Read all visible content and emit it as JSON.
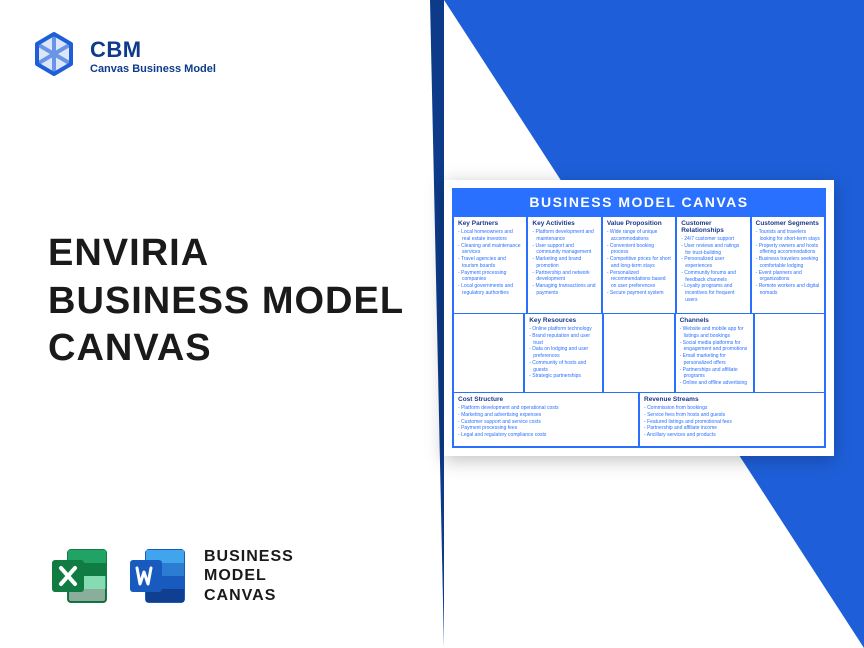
{
  "brand": {
    "name": "CBM",
    "tagline": "Canvas Business Model"
  },
  "title": {
    "line1": "ENVIRIA",
    "line2": "BUSINESS MODEL",
    "line3": "CANVAS"
  },
  "bottom": {
    "line1": "BUSINESS",
    "line2": "MODEL",
    "line3": "CANVAS"
  },
  "canvas": {
    "header": "BUSINESS MODEL CANVAS",
    "keyPartners": {
      "title": "Key Partners",
      "items": [
        "Local homeowners and real estate investors",
        "Cleaning and maintenance services",
        "Travel agencies and tourism boards",
        "Payment processing companies",
        "Local governments and regulatory authorities"
      ]
    },
    "keyActivities": {
      "title": "Key Activities",
      "items": [
        "Platform development and maintenance",
        "User support and community management",
        "Marketing and brand promotion",
        "Partnership and network development",
        "Managing transactions and payments"
      ]
    },
    "valueProp": {
      "title": "Value Proposition",
      "items": [
        "Wide range of unique accommodations",
        "Convenient booking process",
        "Competitive prices for short and long-term stays",
        "Personalized recommendations based on user preferences",
        "Secure payment system"
      ]
    },
    "customerRel": {
      "title": "Customer Relationships",
      "items": [
        "24/7 customer support",
        "User reviews and ratings for trust-building",
        "Personalized user experiences",
        "Community forums and feedback channels",
        "Loyalty programs and incentives for frequent users"
      ]
    },
    "customerSeg": {
      "title": "Customer Segments",
      "items": [
        "Tourists and travelers looking for short-term stays",
        "Property owners and hosts offering accommodations",
        "Business travelers seeking comfortable lodging",
        "Event planners and organizations",
        "Remote workers and digital nomads"
      ]
    },
    "keyResources": {
      "title": "Key Resources",
      "items": [
        "Online platform technology",
        "Brand reputation and user trust",
        "Data on lodging and user preferences",
        "Community of hosts and guests",
        "Strategic partnerships"
      ]
    },
    "channels": {
      "title": "Channels",
      "items": [
        "Website and mobile app for listings and bookings",
        "Social media platforms for engagement and promotions",
        "Email marketing for personalized offers",
        "Partnerships and affiliate programs",
        "Online and offline advertising"
      ]
    },
    "costStructure": {
      "title": "Cost Structure",
      "items": [
        "Platform development and operational costs",
        "Marketing and advertising expenses",
        "Customer support and service costs",
        "Payment processing fees",
        "Legal and regulatory compliance costs"
      ]
    },
    "revenueStreams": {
      "title": "Revenue Streams",
      "items": [
        "Commission from bookings",
        "Service fees from hosts and guests",
        "Featured listings and promotional fees",
        "Partnership and affiliate income",
        "Ancillary services and products"
      ]
    }
  },
  "colors": {
    "primary": "#1e5fd9",
    "dark": "#0d3b8a",
    "header": "#2970ff",
    "excel": "#107c41",
    "word": "#185abd"
  }
}
